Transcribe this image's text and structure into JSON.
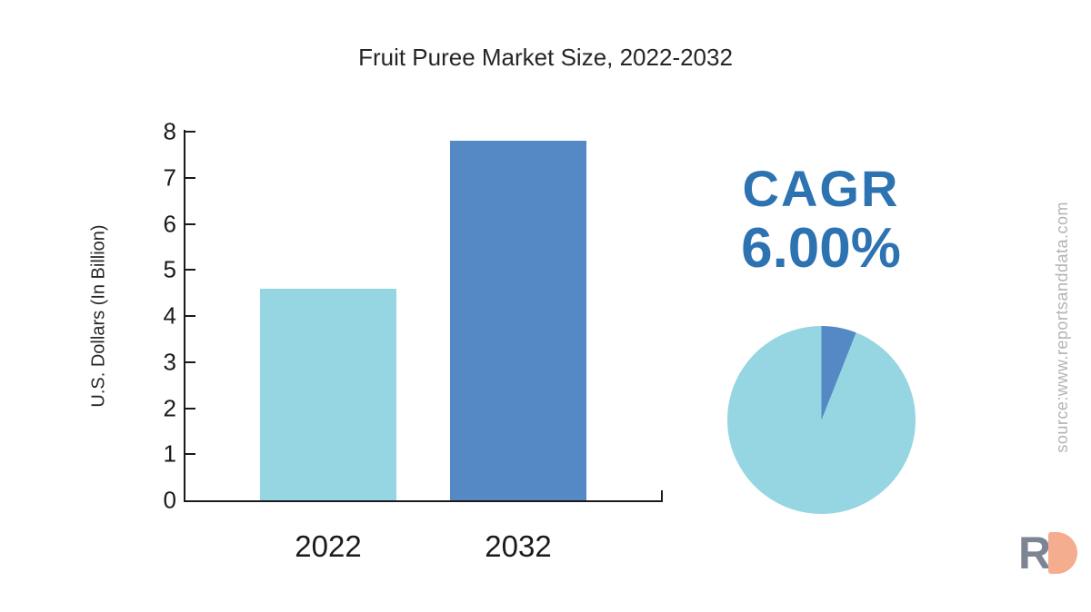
{
  "title": "Fruit Puree Market Size, 2022-2032",
  "chart_data": [
    {
      "type": "bar",
      "title": "Fruit Puree Market Size, 2022-2032",
      "categories": [
        "2022",
        "2032"
      ],
      "values": [
        4.6,
        7.8
      ],
      "xlabel": "",
      "ylabel": "U.S. Dollars (In Billion)",
      "ylim": [
        0,
        8
      ],
      "yticks": [
        0,
        1,
        2,
        3,
        4,
        5,
        6,
        7,
        8
      ],
      "bar_colors": [
        "#96d5e2",
        "#5489c6"
      ],
      "grid": false,
      "legend": "none"
    },
    {
      "type": "pie",
      "slices": [
        {
          "name": "cagr-slice",
          "value": 6,
          "color": "#5489c6"
        },
        {
          "name": "remainder-slice",
          "value": 94,
          "color": "#96d5e2"
        }
      ]
    }
  ],
  "cagr": {
    "label": "CAGR",
    "value": "6.00%",
    "percent": 6.0,
    "color": "#2d73b2"
  },
  "source": {
    "text": "source:www.reportsanddata.com",
    "color": "#b3b3b3"
  },
  "logo": {
    "letter_r": "R",
    "r_color": "#7d8492",
    "d_color": "#f5ad90"
  },
  "colors": {
    "axis": "#1a1a1a",
    "background": "#ffffff"
  }
}
